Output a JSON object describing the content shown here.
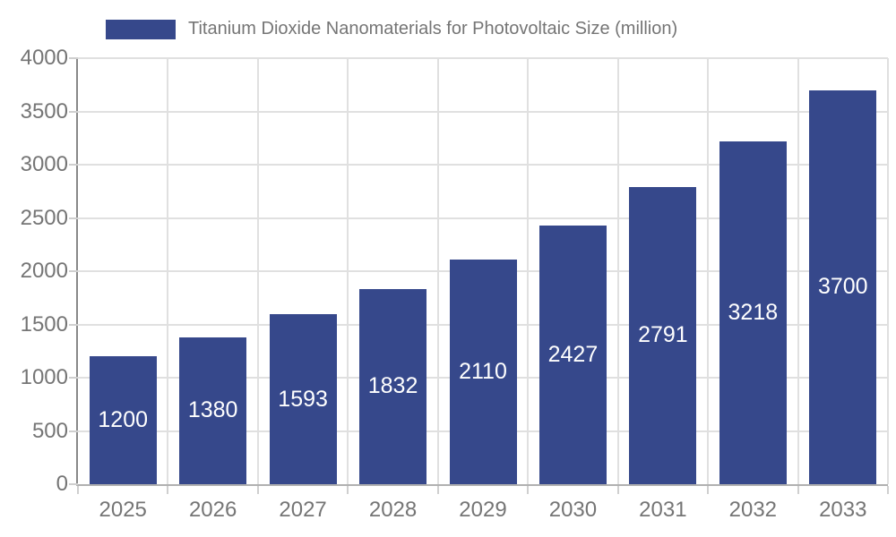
{
  "chart_data": {
    "type": "bar",
    "title": "Titanium Dioxide Nanomaterials for Photovoltaic Size (million)",
    "categories": [
      "2025",
      "2026",
      "2027",
      "2028",
      "2029",
      "2030",
      "2031",
      "2032",
      "2033"
    ],
    "values": [
      1200,
      1380,
      1593,
      1832,
      2110,
      2427,
      2791,
      3218,
      3700
    ],
    "xlabel": "",
    "ylabel": "",
    "ylim": [
      0,
      4000
    ],
    "yticks": [
      0,
      500,
      1000,
      1500,
      2000,
      2500,
      3000,
      3500,
      4000
    ],
    "grid": true,
    "legend_position": "top-left",
    "bar_label_position": "inside-center",
    "colors": {
      "bar": "#36488B",
      "bar_label": "#FFFFFF",
      "axis_text": "#757575",
      "gridline": "#E0E0E0",
      "y_axis_line": "#888888",
      "x_axis_line": "#B0B0B0",
      "tick": "#CFCFCF",
      "background": "#FFFFFF"
    }
  }
}
